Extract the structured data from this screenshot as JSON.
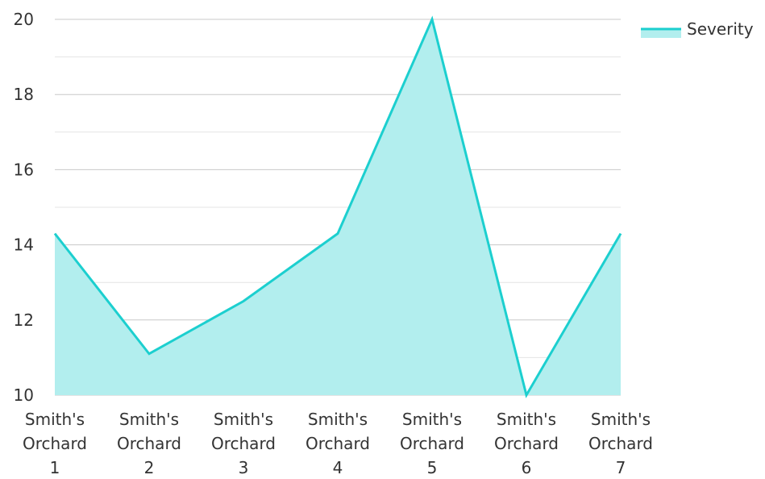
{
  "chart_data": {
    "type": "area",
    "title": "",
    "xlabel": "",
    "ylabel": "",
    "categories": [
      [
        "Smith's",
        "Orchard",
        "1"
      ],
      [
        "Smith's",
        "Orchard",
        "2"
      ],
      [
        "Smith's",
        "Orchard",
        "3"
      ],
      [
        "Smith's",
        "Orchard",
        "4"
      ],
      [
        "Smith's",
        "Orchard",
        "5"
      ],
      [
        "Smith's",
        "Orchard",
        "6"
      ],
      [
        "Smith's",
        "Orchard",
        "7"
      ]
    ],
    "series": [
      {
        "name": "Severity",
        "values": [
          14.3,
          11.1,
          12.5,
          14.3,
          20,
          10,
          14.3
        ]
      }
    ],
    "ylim": [
      10,
      20
    ],
    "yticks": [
      "10",
      "12",
      "14",
      "16",
      "18",
      "20"
    ],
    "grid": true,
    "legend_position": "top-right",
    "colors": {
      "line": "#1ccfcf",
      "fill": "#b2eeee",
      "grid_major": "#c8c8c8",
      "grid_minor": "#e4e4e4",
      "text": "#333333"
    }
  }
}
